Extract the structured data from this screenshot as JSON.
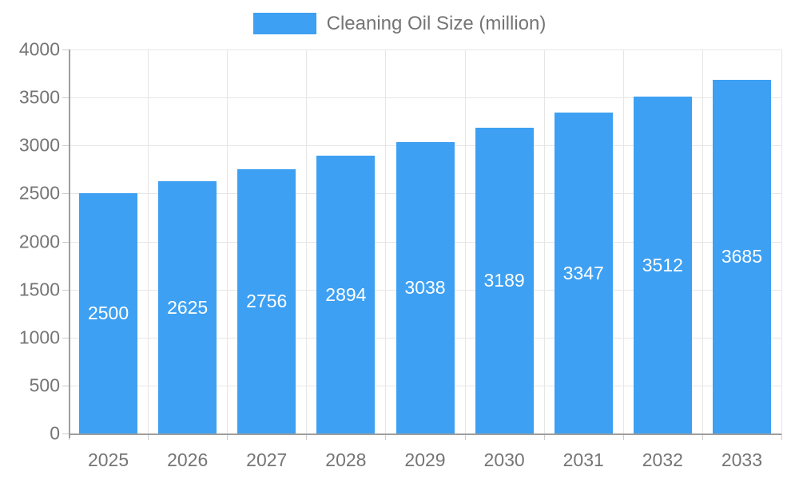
{
  "chart_data": {
    "type": "bar",
    "title": "",
    "legend": {
      "label": "Cleaning Oil Size (million)",
      "position": "top-center"
    },
    "categories": [
      "2025",
      "2026",
      "2027",
      "2028",
      "2029",
      "2030",
      "2031",
      "2032",
      "2033"
    ],
    "series": [
      {
        "name": "Cleaning Oil Size (million)",
        "values": [
          2500,
          2625,
          2756,
          2894,
          3038,
          3189,
          3347,
          3512,
          3685
        ]
      }
    ],
    "xlabel": "",
    "ylabel": "",
    "ylim": [
      0,
      4000
    ],
    "yticks": [
      0,
      500,
      1000,
      1500,
      2000,
      2500,
      3000,
      3500,
      4000
    ],
    "grid": true,
    "bar_label_position": "inside-center",
    "colors": {
      "bar": "#3da0f2",
      "axis_line": "#9e9e9e",
      "tick_line": "#cccccc",
      "grid_line": "#e6e6e6",
      "axis_text": "#757575",
      "bar_label_text": "#ffffff",
      "background": "#ffffff"
    }
  }
}
